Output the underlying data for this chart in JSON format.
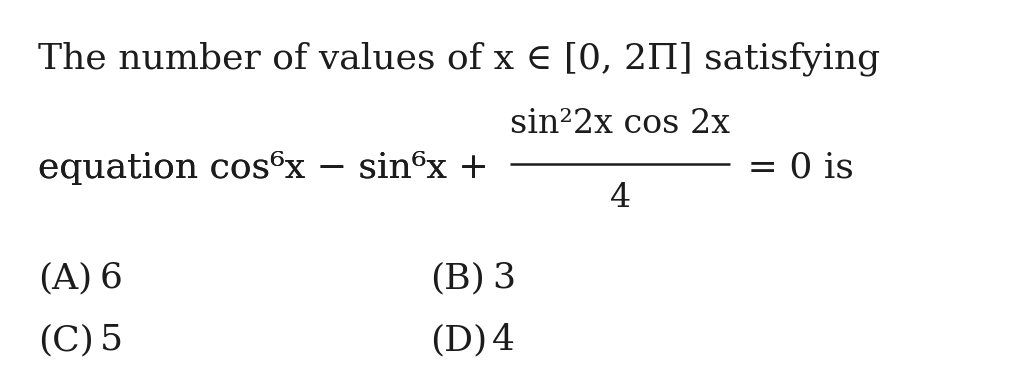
{
  "bg_color": "#ffffff",
  "text_color": "#1c1c1c",
  "line1": "The number of values of x ∈ [0, 2Π] satisfying",
  "line2_left": "equation cos⁶x − sin⁶x + ",
  "fraction_num": "sin²2x cos 2x",
  "fraction_den": "4",
  "line2_right": " = 0 is",
  "optA_label": "(A)",
  "optA_val": "6",
  "optB_label": "(B)",
  "optB_val": "3",
  "optC_label": "(C)",
  "optC_val": "5",
  "optD_label": "(D)",
  "optD_val": "4",
  "font_size_main": 26,
  "font_size_options": 26,
  "font_family": "DejaVu Serif",
  "fig_width": 10.24,
  "fig_height": 3.76,
  "dpi": 100
}
